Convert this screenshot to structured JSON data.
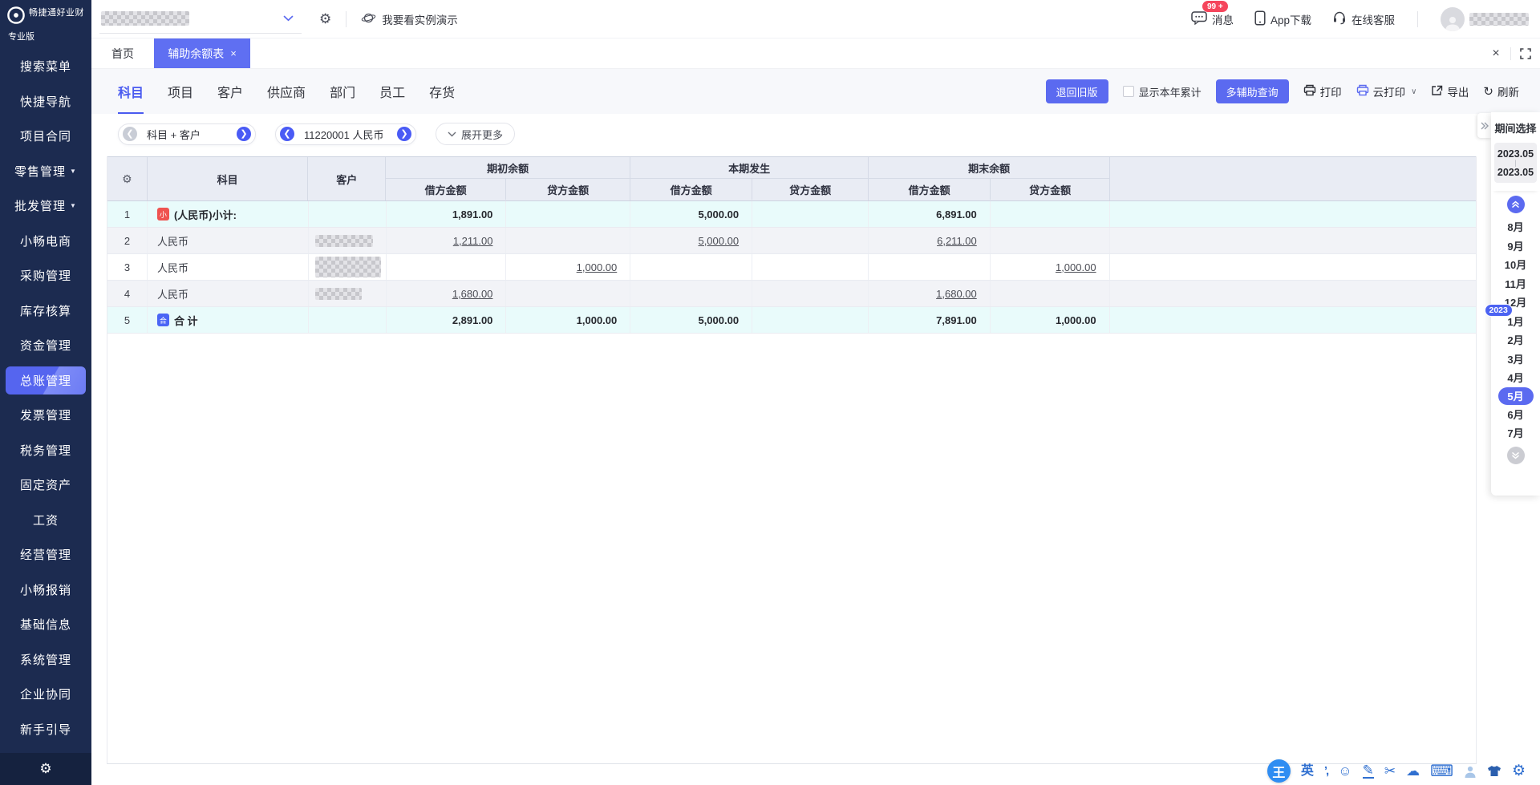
{
  "brand": {
    "name": "畅捷通好业财",
    "edition": "专业版"
  },
  "topbar": {
    "demo_link": "我要看实例演示",
    "messages": "消息",
    "messages_badge": "99 +",
    "app_download": "App下载",
    "support": "在线客服"
  },
  "tabbar": {
    "home": "首页",
    "active_tab": "辅助余额表",
    "close": "×"
  },
  "sidebar": {
    "items": [
      {
        "label": "搜索菜单"
      },
      {
        "label": "快捷导航"
      },
      {
        "label": "项目合同"
      },
      {
        "label": "零售管理",
        "arrow": true
      },
      {
        "label": "批发管理",
        "arrow": true
      },
      {
        "label": "小畅电商"
      },
      {
        "label": "采购管理"
      },
      {
        "label": "库存核算"
      },
      {
        "label": "资金管理"
      },
      {
        "label": "总账管理",
        "selected": true
      },
      {
        "label": "发票管理"
      },
      {
        "label": "税务管理"
      },
      {
        "label": "固定资产"
      },
      {
        "label": "工资"
      },
      {
        "label": "经营管理"
      },
      {
        "label": "小畅报销"
      },
      {
        "label": "基础信息"
      },
      {
        "label": "系统管理"
      },
      {
        "label": "企业协同"
      },
      {
        "label": "新手引导"
      }
    ]
  },
  "toolbar": {
    "dimension_tabs": [
      "科目",
      "项目",
      "客户",
      "供应商",
      "部门",
      "员工",
      "存货"
    ],
    "active_dimension": "科目",
    "back_to_old": "退回旧版",
    "show_ytd": "显示本年累计",
    "multi_aux_query": "多辅助查询",
    "print": "打印",
    "cloud_print": "云打印",
    "export": "导出",
    "refresh": "刷新"
  },
  "filterbar": {
    "combo_chip": "科目 + 客户",
    "account_chip": "11220001 人民币",
    "expand_more": "展开更多"
  },
  "table": {
    "fixed_headers": [
      "科目",
      "客户"
    ],
    "groups": [
      "期初余额",
      "本期发生",
      "期末余额"
    ],
    "sub_headers": [
      "借方金额",
      "贷方金额"
    ],
    "rows": [
      {
        "num": "1",
        "badge": "小",
        "badge_color": "#ef5350",
        "subject": "(人民币)小计:",
        "style": "subtotal",
        "values": [
          "1,891.00",
          "",
          "5,000.00",
          "",
          "6,891.00",
          ""
        ]
      },
      {
        "num": "2",
        "subject": "人民币",
        "blur": [
          72,
          15
        ],
        "style": "link",
        "values": [
          "1,211.00",
          "",
          "5,000.00",
          "",
          "6,211.00",
          ""
        ]
      },
      {
        "num": "3",
        "subject": "人民币",
        "blur": [
          82,
          26
        ],
        "style": "link",
        "values": [
          "",
          "1,000.00",
          "",
          "",
          "",
          "1,000.00"
        ]
      },
      {
        "num": "4",
        "subject": "人民币",
        "blur": [
          58,
          15
        ],
        "style": "link",
        "values": [
          "1,680.00",
          "",
          "",
          "",
          "1,680.00",
          ""
        ]
      },
      {
        "num": "5",
        "badge": "合",
        "badge_color": "#4a66f5",
        "subject": "合 计",
        "style": "total",
        "values": [
          "2,891.00",
          "1,000.00",
          "5,000.00",
          "",
          "7,891.00",
          "1,000.00"
        ]
      }
    ]
  },
  "period_panel": {
    "title": "期间选择",
    "range_start": "2023.05",
    "range_end": "2023.05",
    "year_badge": "2023",
    "months": [
      {
        "label": "8月"
      },
      {
        "label": "9月"
      },
      {
        "label": "10月"
      },
      {
        "label": "11月"
      },
      {
        "label": "12月"
      },
      {
        "label": "1月",
        "year_break": true
      },
      {
        "label": "2月"
      },
      {
        "label": "3月"
      },
      {
        "label": "4月"
      },
      {
        "label": "5月",
        "selected": true
      },
      {
        "label": "6月"
      },
      {
        "label": "7月"
      }
    ]
  },
  "ime": {
    "logo": "王",
    "lang": "英"
  },
  "colors": {
    "accent": "#5b6af0",
    "sidebar": "#1c2b50",
    "badge_red": "#f5455c"
  }
}
